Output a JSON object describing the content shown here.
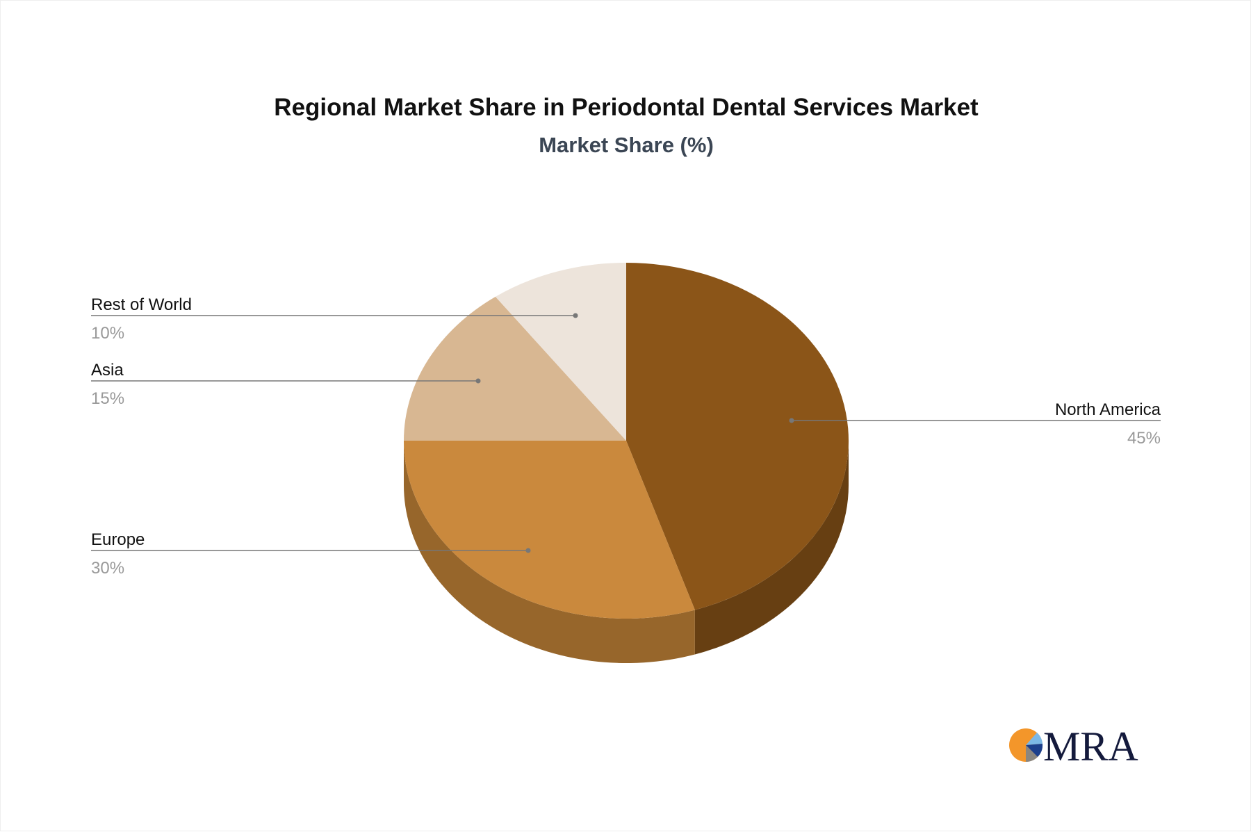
{
  "chart_data": {
    "type": "pie",
    "style": "3d",
    "title": "Regional Market Share in Periodontal Dental Services Market",
    "subtitle": "Market Share (%)",
    "slices": [
      {
        "label": "North America",
        "value": 45,
        "value_label": "45%",
        "color": "#8b5518",
        "side_color": "#673f12"
      },
      {
        "label": "Europe",
        "value": 30,
        "value_label": "30%",
        "color": "#ca893d",
        "side_color": "#97662b"
      },
      {
        "label": "Asia",
        "value": 15,
        "value_label": "15%",
        "color": "#d8b792",
        "side_color": "#a88a68"
      },
      {
        "label": "Rest of World",
        "value": 10,
        "value_label": "10%",
        "color": "#ede4db",
        "side_color": "#bdb4ab"
      }
    ]
  },
  "logo": {
    "text": "MRA"
  }
}
